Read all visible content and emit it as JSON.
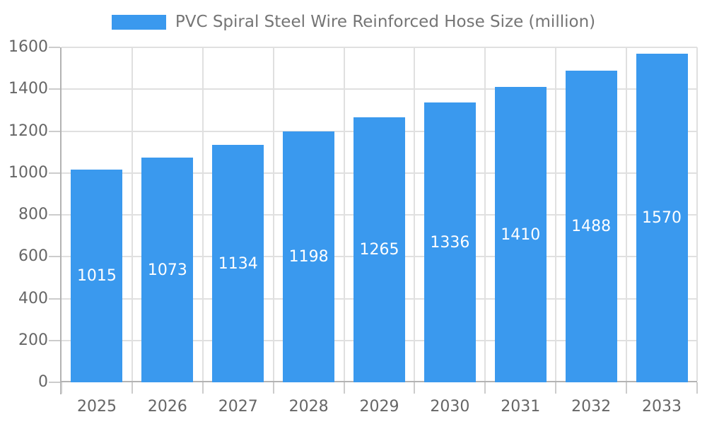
{
  "chart_data": {
    "type": "bar",
    "title": "",
    "legend": "PVC Spiral Steel Wire Reinforced Hose Size (million)",
    "legend_position": "top",
    "categories": [
      "2025",
      "2026",
      "2027",
      "2028",
      "2029",
      "2030",
      "2031",
      "2032",
      "2033"
    ],
    "values": [
      1015,
      1073,
      1134,
      1198,
      1265,
      1336,
      1410,
      1488,
      1570
    ],
    "xlabel": "",
    "ylabel": "",
    "ylim": [
      0,
      1600
    ],
    "y_ticks": [
      0,
      200,
      400,
      600,
      800,
      1000,
      1200,
      1400,
      1600
    ],
    "grid": true,
    "bar_labels_inside": true,
    "colors": {
      "bar": "#3a99ee",
      "bar_label": "#ffffff",
      "axis_text": "#666666",
      "legend_text": "#757575",
      "grid_line": "#e0e0e0",
      "axis_line": "#b3b3b3",
      "tick_mark": "#cccccc",
      "background": "#ffffff"
    }
  }
}
